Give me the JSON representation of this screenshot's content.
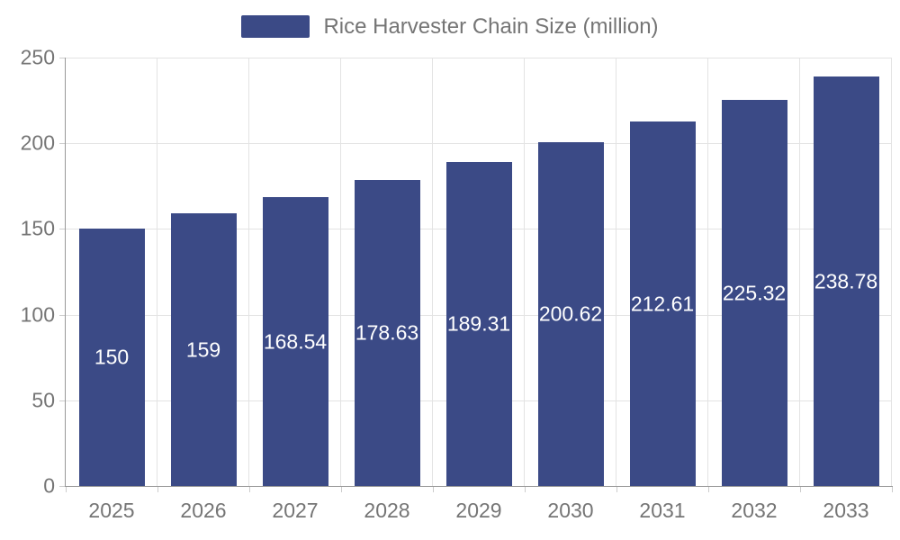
{
  "legend": {
    "label": "Rice Harvester Chain Size (million)"
  },
  "colors": {
    "bar": "#3b4a86",
    "axis_line": "#999999",
    "gridline": "#e3e3e3",
    "tick": "#cccccc",
    "axis_text": "#757575",
    "legend_text": "#757575",
    "value_text": "#ffffff",
    "background": "#ffffff"
  },
  "chart_data": {
    "type": "bar",
    "title": "",
    "xlabel": "",
    "ylabel": "",
    "categories": [
      "2025",
      "2026",
      "2027",
      "2028",
      "2029",
      "2030",
      "2031",
      "2032",
      "2033"
    ],
    "values": [
      150,
      159,
      168.54,
      178.63,
      189.31,
      200.62,
      212.61,
      225.32,
      238.78
    ],
    "value_labels": [
      "150",
      "159",
      "168.54",
      "178.63",
      "189.31",
      "200.62",
      "212.61",
      "225.32",
      "238.78"
    ],
    "series_name": "Rice Harvester Chain Size (million)",
    "ylim": [
      0,
      250
    ],
    "yticks": [
      0,
      50,
      100,
      150,
      200,
      250
    ],
    "grid": true,
    "legend_position": "top-center",
    "value_label_position": "inside-center"
  }
}
